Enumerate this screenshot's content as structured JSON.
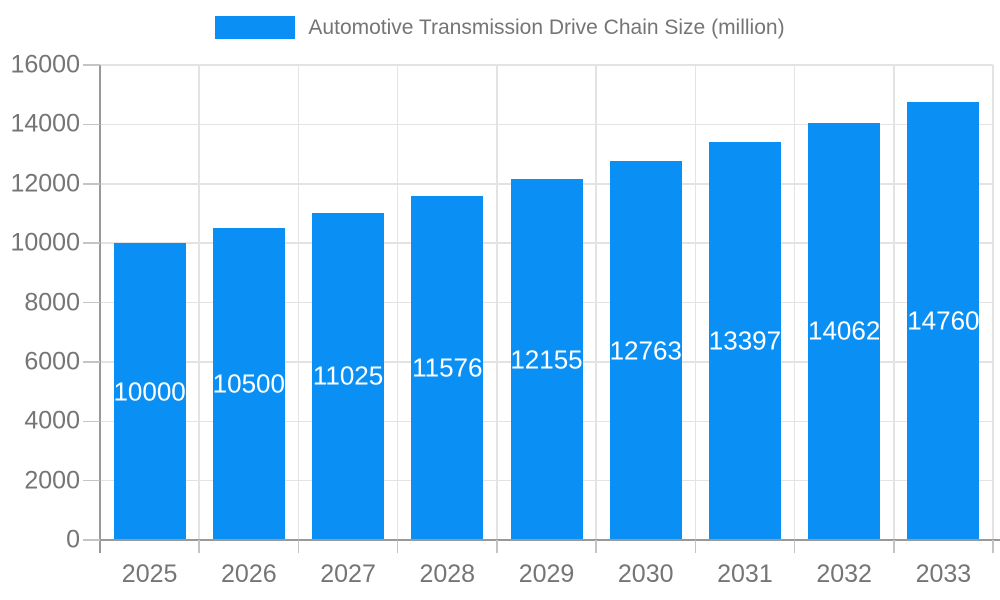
{
  "chart_data": {
    "type": "bar",
    "title": "Automotive Transmission Drive Chain Size (million)",
    "legend_position": "top",
    "categories": [
      "2025",
      "2026",
      "2027",
      "2028",
      "2029",
      "2030",
      "2031",
      "2032",
      "2033"
    ],
    "values": [
      10000,
      10500,
      11025,
      11576,
      12155,
      12763,
      13397,
      14062,
      14760
    ],
    "data_labels_visible": true,
    "xlabel": "",
    "ylabel": "",
    "ylim": [
      0,
      16000
    ],
    "yticks": [
      0,
      2000,
      4000,
      6000,
      8000,
      10000,
      12000,
      14000,
      16000
    ],
    "grid": "horizontal and vertical category boundaries",
    "colors": {
      "bar": "#0a90f5",
      "data_label_text": "#ffffff",
      "axis_text": "#757575",
      "gridline": "#e3e3e3",
      "tick": "#c4c4c4",
      "axis_line": "#999999",
      "background": "#ffffff"
    }
  }
}
